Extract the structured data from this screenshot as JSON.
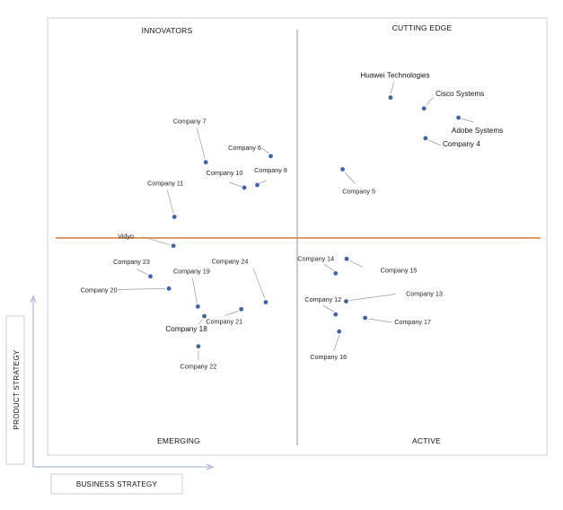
{
  "chart_data": {
    "type": "scatter",
    "title": "",
    "xlabel": "BUSINESS STRATEGY",
    "ylabel": "PRODUCT STRATEGY",
    "quadrants": {
      "top_left": "INNOVATORS",
      "top_right": "CUTTING EDGE",
      "bottom_left": "EMERGING",
      "bottom_right": "ACTIVE"
    },
    "grid": false,
    "points": [
      {
        "name": "Huawei Technologies",
        "x": 0.687,
        "y": 0.818
      },
      {
        "name": "Cisco Systems",
        "x": 0.754,
        "y": 0.793
      },
      {
        "name": "Adobe Systems",
        "x": 0.823,
        "y": 0.772
      },
      {
        "name": "Company 4",
        "x": 0.757,
        "y": 0.725
      },
      {
        "name": "Company 5",
        "x": 0.591,
        "y": 0.654
      },
      {
        "name": "Company 6",
        "x": 0.447,
        "y": 0.684
      },
      {
        "name": "Company 7",
        "x": 0.317,
        "y": 0.67
      },
      {
        "name": "Company 8",
        "x": 0.42,
        "y": 0.618
      },
      {
        "name": "Company 10",
        "x": 0.394,
        "y": 0.612
      },
      {
        "name": "Company 11",
        "x": 0.254,
        "y": 0.545
      },
      {
        "name": "Vidyo",
        "x": 0.252,
        "y": 0.479
      },
      {
        "name": "Company 23",
        "x": 0.206,
        "y": 0.409
      },
      {
        "name": "Company 20",
        "x": 0.243,
        "y": 0.381
      },
      {
        "name": "Company 19",
        "x": 0.301,
        "y": 0.34
      },
      {
        "name": "Company 24",
        "x": 0.437,
        "y": 0.35
      },
      {
        "name": "Company 21",
        "x": 0.388,
        "y": 0.334
      },
      {
        "name": "Company 18",
        "x": 0.314,
        "y": 0.318
      },
      {
        "name": "Company 22",
        "x": 0.302,
        "y": 0.249
      },
      {
        "name": "Company 14",
        "x": 0.577,
        "y": 0.416
      },
      {
        "name": "Company 15",
        "x": 0.599,
        "y": 0.449
      },
      {
        "name": "Company 12",
        "x": 0.577,
        "y": 0.322
      },
      {
        "name": "Company 13",
        "x": 0.598,
        "y": 0.352
      },
      {
        "name": "Company 17",
        "x": 0.636,
        "y": 0.314
      },
      {
        "name": "Company 16",
        "x": 0.584,
        "y": 0.283
      }
    ]
  }
}
